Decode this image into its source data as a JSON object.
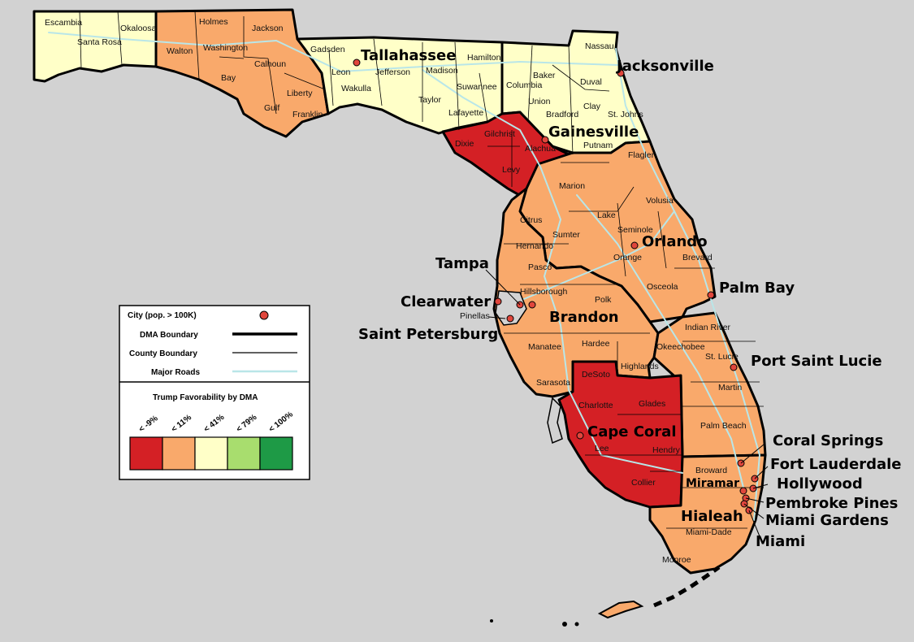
{
  "map": {
    "regions": [
      {
        "id": "pensacola",
        "favorability_bin": "< 41%",
        "color": "#ffffc8"
      },
      {
        "id": "panama-city",
        "favorability_bin": "< 11%",
        "color": "#f9a96b"
      },
      {
        "id": "tallahassee",
        "favorability_bin": "< 41%",
        "color": "#ffffc8"
      },
      {
        "id": "jacksonville",
        "favorability_bin": "< 41%",
        "color": "#ffffc8"
      },
      {
        "id": "gainesville",
        "favorability_bin": "< -9%",
        "color": "#d42025"
      },
      {
        "id": "orlando",
        "favorability_bin": "< 11%",
        "color": "#f9a96b"
      },
      {
        "id": "tampa",
        "favorability_bin": "< 11%",
        "color": "#f9a96b"
      },
      {
        "id": "west-palm-beach",
        "favorability_bin": "< 11%",
        "color": "#f9a96b"
      },
      {
        "id": "fort-myers",
        "favorability_bin": "< -9%",
        "color": "#d42025"
      },
      {
        "id": "miami",
        "favorability_bin": "< 11%",
        "color": "#f9a96b"
      }
    ],
    "cities": [
      {
        "name": "Tallahassee",
        "kind": "big"
      },
      {
        "name": "Jacksonville",
        "kind": "big"
      },
      {
        "name": "Gainesville",
        "kind": "big"
      },
      {
        "name": "Orlando",
        "kind": "big"
      },
      {
        "name": "Tampa",
        "kind": "big"
      },
      {
        "name": "Clearwater",
        "kind": "big"
      },
      {
        "name": "Saint Petersburg",
        "kind": "big"
      },
      {
        "name": "Brandon",
        "kind": "big"
      },
      {
        "name": "Palm Bay",
        "kind": "big"
      },
      {
        "name": "Port Saint Lucie",
        "kind": "big"
      },
      {
        "name": "Cape Coral",
        "kind": "big"
      },
      {
        "name": "Coral Springs",
        "kind": "big"
      },
      {
        "name": "Fort Lauderdale",
        "kind": "big"
      },
      {
        "name": "Hollywood",
        "kind": "big"
      },
      {
        "name": "Pembroke Pines",
        "kind": "big"
      },
      {
        "name": "Miami Gardens",
        "kind": "big"
      },
      {
        "name": "Miami",
        "kind": "big"
      },
      {
        "name": "Miramar",
        "kind": "mid"
      },
      {
        "name": "Hialeah",
        "kind": "big"
      }
    ],
    "counties": [
      "Escambia",
      "Santa Rosa",
      "Okaloosa",
      "Walton",
      "Holmes",
      "Washington",
      "Jackson",
      "Bay",
      "Calhoun",
      "Liberty",
      "Gulf",
      "Franklin",
      "Gadsden",
      "Leon",
      "Wakulla",
      "Jefferson",
      "Madison",
      "Taylor",
      "Hamilton",
      "Suwannee",
      "Lafayette",
      "Columbia",
      "Baker",
      "Union",
      "Bradford",
      "Nassau",
      "Duval",
      "Clay",
      "St. Johns",
      "Putnam",
      "Dixie",
      "Gilchrist",
      "Alachua",
      "Levy",
      "Marion",
      "Flagler",
      "Volusia",
      "Citrus",
      "Lake",
      "Sumter",
      "Hernando",
      "Seminole",
      "Orange",
      "Brevard",
      "Pasco",
      "Hillsborough",
      "Pinellas",
      "Osceola",
      "Polk",
      "Indian River",
      "Manatee",
      "Hardee",
      "Okeechobee",
      "St. Lucie",
      "Highlands",
      "Sarasota",
      "DeSoto",
      "Martin",
      "Charlotte",
      "Glades",
      "Palm Beach",
      "Lee",
      "Hendry",
      "Broward",
      "Collier",
      "Miami-Dade",
      "Monroe"
    ]
  },
  "legend": {
    "city_label": "City (pop. > 100K)",
    "dma_label": "DMA Boundary",
    "county_label": "County Boundary",
    "roads_label": "Major Roads",
    "scale_title": "Trump Favorability by DMA",
    "bins": [
      {
        "label": "< -9%",
        "color": "#d42025"
      },
      {
        "label": "< 11%",
        "color": "#f9a96b"
      },
      {
        "label": "< 41%",
        "color": "#ffffc8"
      },
      {
        "label": "< 79%",
        "color": "#a8dd6e"
      },
      {
        "label": "< 100%",
        "color": "#1e9a46"
      }
    ],
    "colors": {
      "city_dot": "#e0463c",
      "roads": "#b9e6e8",
      "dma": "#000000",
      "county": "#000000"
    }
  }
}
